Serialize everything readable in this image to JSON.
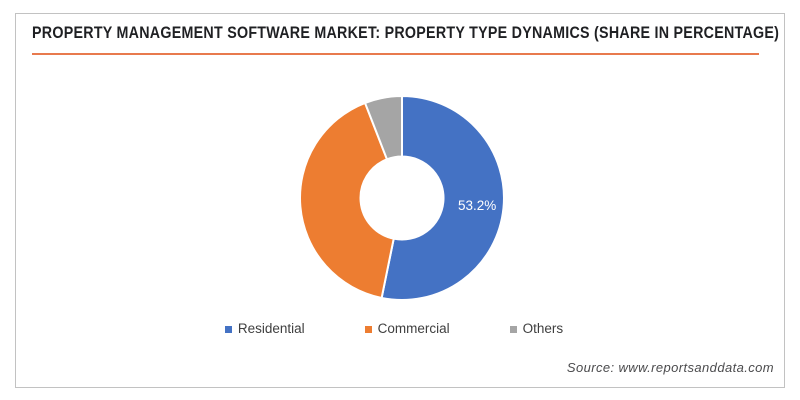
{
  "header": {
    "title": "PROPERTY MANAGEMENT SOFTWARE MARKET: PROPERTY TYPE DYNAMICS (SHARE IN PERCENTAGE)",
    "underline_color": "#e87a4e"
  },
  "chart_data": {
    "type": "pie",
    "subtype": "donut",
    "title": "PROPERTY MANAGEMENT SOFTWARE MARKET: PROPERTY TYPE DYNAMICS (SHARE IN PERCENTAGE)",
    "categories": [
      "Residential",
      "Commercial",
      "Others"
    ],
    "values": [
      53.2,
      40.9,
      5.9
    ],
    "data_labels": [
      "53.2%",
      "",
      ""
    ],
    "colors": [
      "#4472C4",
      "#ED7D31",
      "#A5A5A5"
    ],
    "start_angle_deg": 0,
    "direction": "clockwise",
    "inner_radius_ratio": 0.41,
    "legend_position": "bottom",
    "separator_color": "#ffffff"
  },
  "footer": {
    "source": "Source: www.reportsanddata.com"
  }
}
